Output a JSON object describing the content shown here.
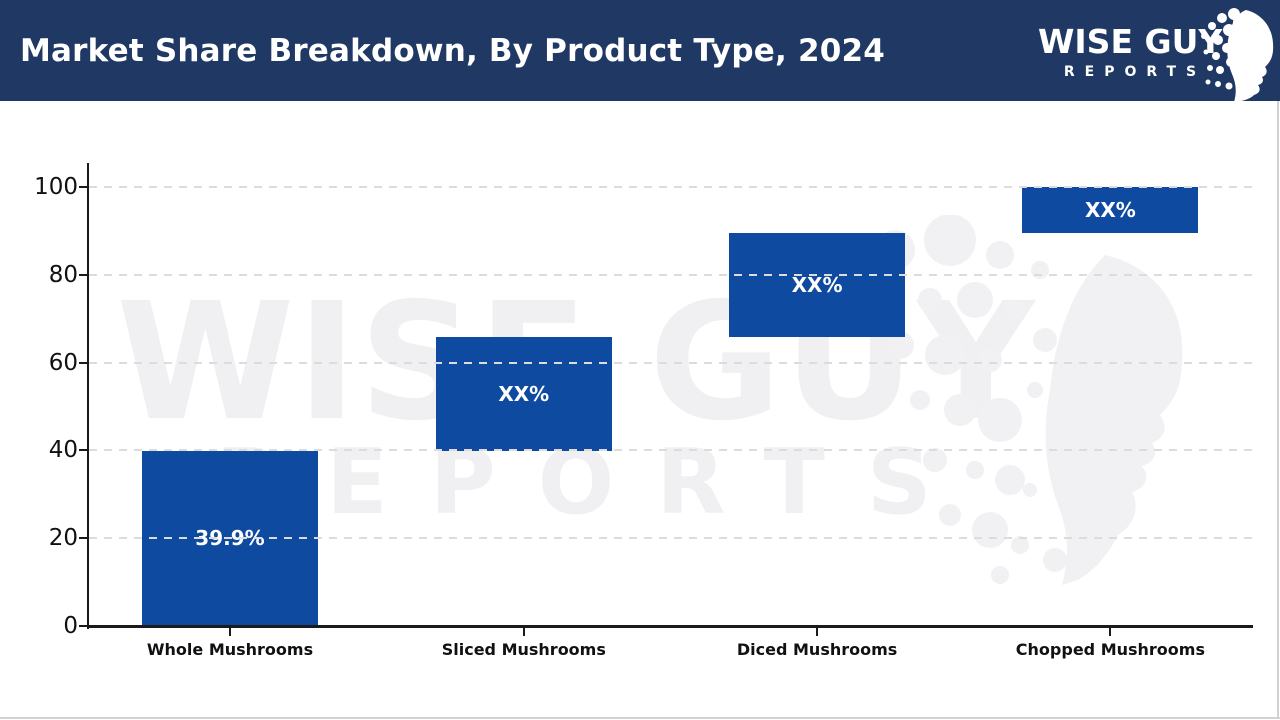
{
  "header": {
    "title": "Market Share Breakdown, By Product Type, 2024",
    "logo": {
      "line1": "WISE GUY",
      "line2": "REPORTS"
    }
  },
  "watermark": {
    "line1": "WISE GUY",
    "line2": "REPORTS"
  },
  "colors": {
    "header_bg": "#203864",
    "bar": "#0d4aa0",
    "grid": "#dcdcdc",
    "axis": "#1a1a1a",
    "watermark": "#f0f0f2",
    "bar_label_text": "#ffffff"
  },
  "chart_data": {
    "type": "bar",
    "variant": "floating-segment-waterfall",
    "title": "Market Share Breakdown, By Product Type, 2024",
    "categories": [
      "Whole Mushrooms",
      "Sliced Mushrooms",
      "Diced Mushrooms",
      "Chopped Mushrooms"
    ],
    "segments": [
      {
        "category": "Whole Mushrooms",
        "start": 0,
        "end": 39.9,
        "label": "39.9%"
      },
      {
        "category": "Sliced Mushrooms",
        "start": 39.9,
        "end": 65.9,
        "label": "XX%"
      },
      {
        "category": "Diced Mushrooms",
        "start": 65.9,
        "end": 89.5,
        "label": "XX%"
      },
      {
        "category": "Chopped Mushrooms",
        "start": 89.5,
        "end": 100,
        "label": "XX%"
      }
    ],
    "yticks": [
      0,
      20,
      40,
      60,
      80,
      100
    ],
    "ylim": [
      0,
      105
    ],
    "xlabel": "",
    "ylabel": "",
    "grid": "horizontal-dashed",
    "legend": "none"
  }
}
